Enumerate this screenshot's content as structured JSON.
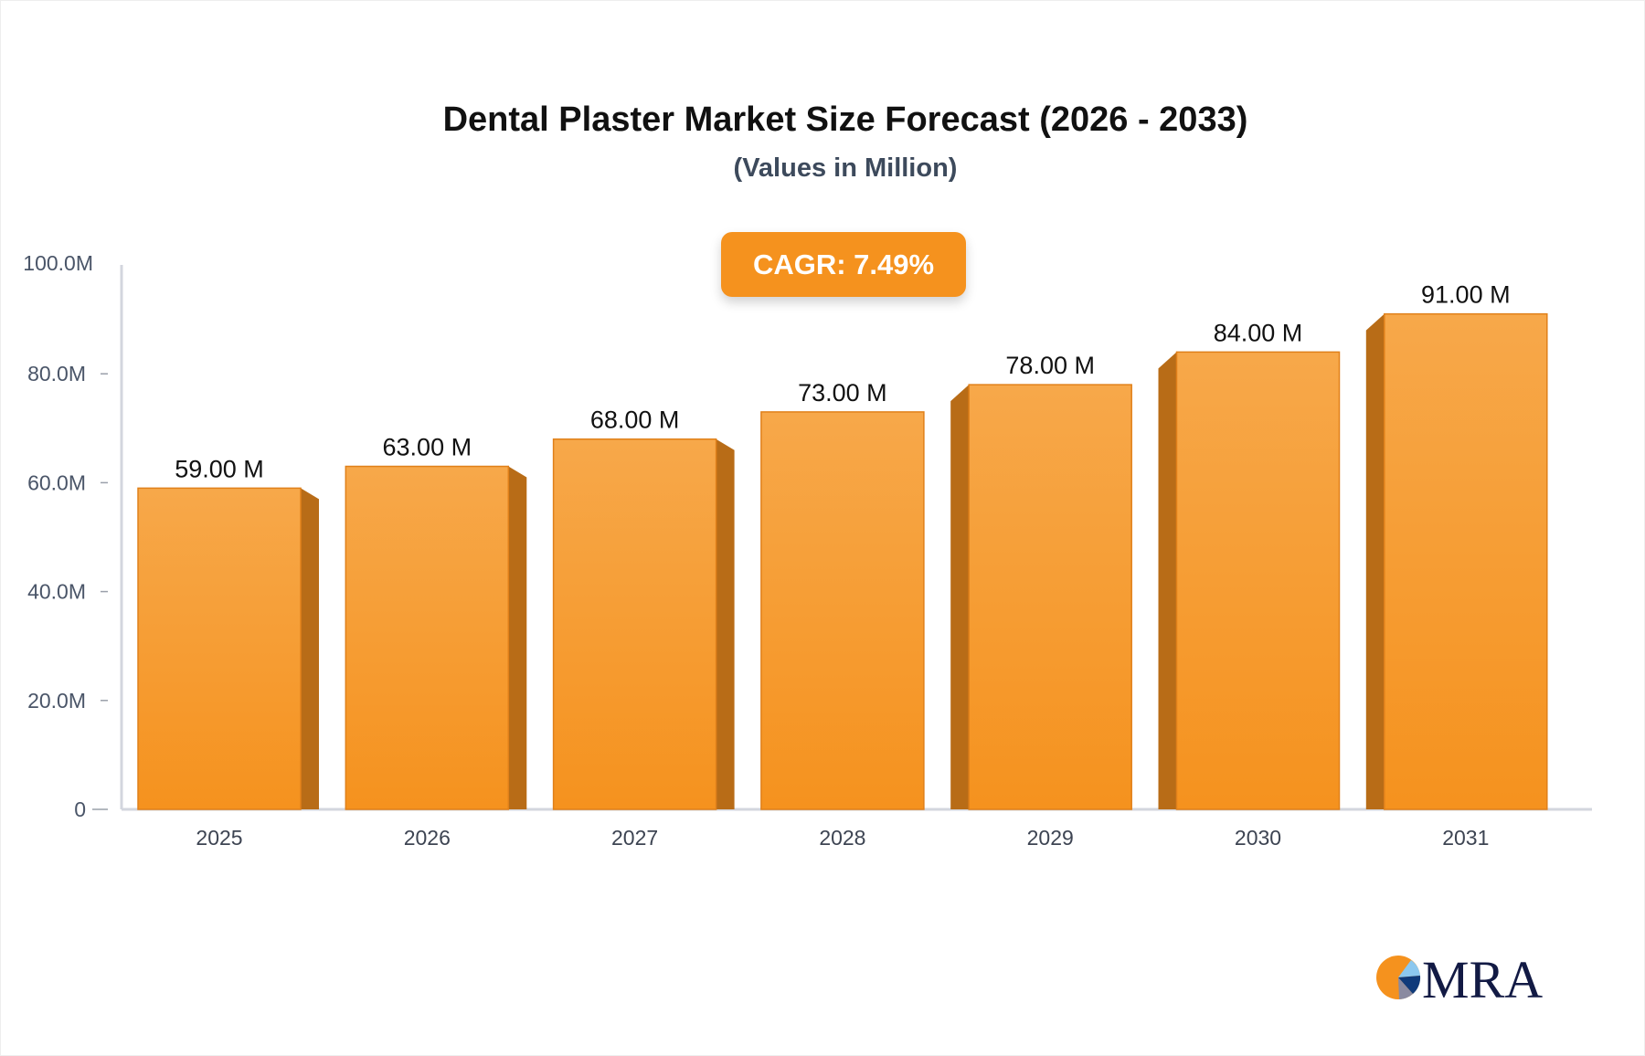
{
  "chart_data": {
    "type": "bar",
    "title": "Dental Plaster Market Size Forecast (2026 - 2033)",
    "subtitle": "(Values in Million)",
    "annotation": "CAGR: 7.49%",
    "categories": [
      "2025",
      "2026",
      "2027",
      "2028",
      "2029",
      "2030",
      "2031"
    ],
    "values": [
      59,
      63,
      68,
      73,
      78,
      84,
      91
    ],
    "data_labels": [
      "59.00 M",
      "63.00 M",
      "68.00 M",
      "73.00 M",
      "78.00 M",
      "84.00 M",
      "91.00 M"
    ],
    "ylim": [
      0,
      100
    ],
    "yticks": [
      0,
      20,
      40,
      60,
      80,
      100
    ],
    "ytick_labels": [
      "0",
      "20.0M",
      "40.0M",
      "60.0M",
      "80.0M",
      "100.0M"
    ],
    "xlabel": "",
    "ylabel": "",
    "grid": false,
    "colors": {
      "bar_top": "#f7a84a",
      "bar_bottom": "#f5921e",
      "bar_side": "#b86c17",
      "bar_edge": "#e0801a"
    }
  },
  "logo": {
    "text": "MRA"
  }
}
